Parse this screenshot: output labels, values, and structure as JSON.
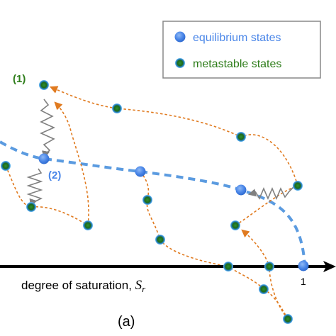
{
  "legend": {
    "equilibrium_label": "equilibrium states",
    "metastable_label": "metastable states"
  },
  "axis": {
    "xlabel_prefix": "degree of saturation, ",
    "xlabel_symbol": "S",
    "xlabel_subscript": "r",
    "tick_one": "1"
  },
  "annotations": {
    "point_1": "(1)",
    "point_2": "(2)"
  },
  "caption": "(a)",
  "colors": {
    "equilibrium": "#4a86e8",
    "metastable_fill": "#1e6b1e",
    "metastable_glow": "#3fa9f5",
    "path": "#e07a1f",
    "equilibrium_curve": "#5b9be0",
    "spring": "#808080",
    "axis": "#000000",
    "label_green": "#2e7d1a",
    "label_blue": "#4a86e8"
  }
}
